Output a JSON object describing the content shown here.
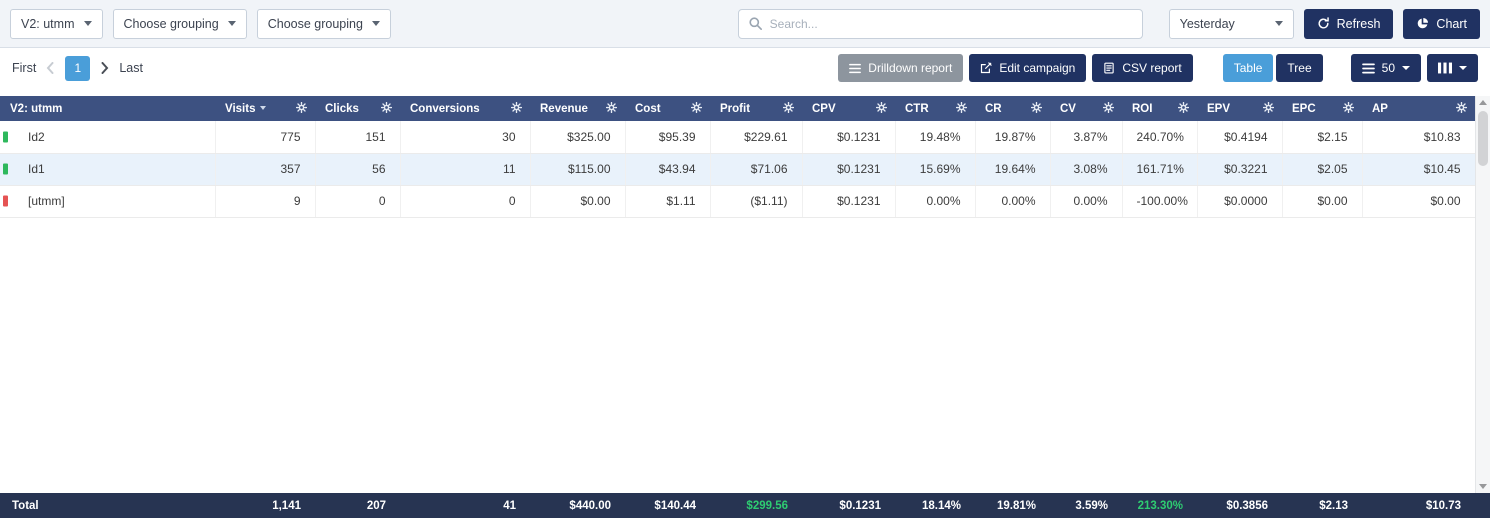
{
  "toolbar": {
    "campaign_select": {
      "value": "V2: utmm"
    },
    "grouping_select_1": {
      "value": "Choose grouping"
    },
    "grouping_select_2": {
      "value": "Choose grouping"
    },
    "search": {
      "placeholder": "Search..."
    },
    "date_select": {
      "value": "Yesterday"
    },
    "refresh_button": "Refresh",
    "chart_button": "Chart"
  },
  "pagination": {
    "first_label": "First",
    "current_page": "1",
    "last_label": "Last"
  },
  "actions": {
    "drilldown_button": "Drilldown report",
    "edit_campaign_button": "Edit campaign",
    "csv_button": "CSV report",
    "table_toggle": "Table",
    "tree_toggle": "Tree",
    "rows_per_page": "50"
  },
  "colors": {
    "navy": "#203262",
    "header_bg": "#3d5181",
    "total_bg": "#273452",
    "accent_blue": "#4a9ed9",
    "positive": "#27a05c",
    "negative": "#e0504d",
    "status_green": "#2eb85c",
    "status_red": "#e55353"
  },
  "table": {
    "columns": [
      {
        "label": "V2: utmm",
        "sortable": false
      },
      {
        "label": "Visits",
        "sortable": true
      },
      {
        "label": "Clicks",
        "sortable": false
      },
      {
        "label": "Conversions",
        "sortable": false
      },
      {
        "label": "Revenue",
        "sortable": false
      },
      {
        "label": "Cost",
        "sortable": false
      },
      {
        "label": "Profit",
        "sortable": false
      },
      {
        "label": "CPV",
        "sortable": false
      },
      {
        "label": "CTR",
        "sortable": false
      },
      {
        "label": "CR",
        "sortable": false
      },
      {
        "label": "CV",
        "sortable": false
      },
      {
        "label": "ROI",
        "sortable": false
      },
      {
        "label": "EPV",
        "sortable": false
      },
      {
        "label": "EPC",
        "sortable": false
      },
      {
        "label": "AP",
        "sortable": false
      }
    ],
    "rows": [
      {
        "status": "green",
        "name": "Id2",
        "cells": [
          "775",
          "151",
          "30",
          "$325.00",
          "$95.39",
          "$229.61",
          "$0.1231",
          "19.48%",
          "19.87%",
          "3.87%",
          "240.70%",
          "$0.4194",
          "$2.15",
          "$10.83"
        ]
      },
      {
        "status": "green",
        "name": "Id1",
        "cells": [
          "357",
          "56",
          "11",
          "$115.00",
          "$43.94",
          "$71.06",
          "$0.1231",
          "15.69%",
          "19.64%",
          "3.08%",
          "161.71%",
          "$0.3221",
          "$2.05",
          "$10.45"
        ]
      },
      {
        "status": "red",
        "name": "[utmm]",
        "cells": [
          "9",
          "0",
          "0",
          "$0.00",
          "$1.11",
          "($1.11)",
          "$0.1231",
          "0.00%",
          "0.00%",
          "0.00%",
          "-100.00%",
          "$0.0000",
          "$0.00",
          "$0.00"
        ]
      }
    ],
    "total": {
      "label": "Total",
      "cells": [
        "1,141",
        "207",
        "41",
        "$440.00",
        "$140.44",
        "$299.56",
        "$0.1231",
        "18.14%",
        "19.81%",
        "3.59%",
        "213.30%",
        "$0.3856",
        "$2.13",
        "$10.73"
      ]
    }
  }
}
